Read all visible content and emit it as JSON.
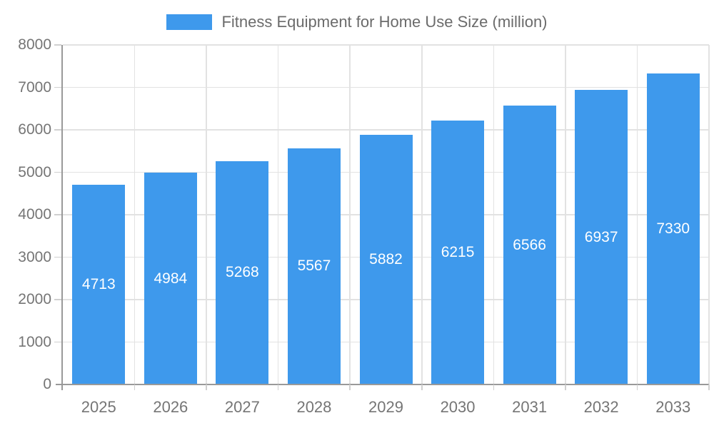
{
  "legend": {
    "label": "Fitness Equipment for Home Use Size (million)"
  },
  "colors": {
    "bar": "#3E99EC",
    "grid_line": "#E2E2E2",
    "axis_line": "#999999",
    "tick": "#D0D0D0",
    "axis_label": "#757575",
    "legend_text": "#6B6B6B",
    "value_label": "#FFFFFF",
    "background": "#FFFFFF"
  },
  "chart_data": {
    "type": "bar",
    "title": "Fitness Equipment for Home Use Size (million)",
    "categories": [
      "2025",
      "2026",
      "2027",
      "2028",
      "2029",
      "2030",
      "2031",
      "2032",
      "2033"
    ],
    "values": [
      4713,
      4984,
      5268,
      5567,
      5882,
      6215,
      6566,
      6937,
      7330
    ],
    "xlabel": "",
    "ylabel": "",
    "ylim": [
      0,
      8000
    ],
    "ytick_interval": 1000,
    "yticks": [
      "0",
      "1000",
      "2000",
      "3000",
      "4000",
      "5000",
      "6000",
      "7000",
      "8000"
    ],
    "grid": true,
    "legend_position": "top",
    "bar_labels_visible": true
  }
}
